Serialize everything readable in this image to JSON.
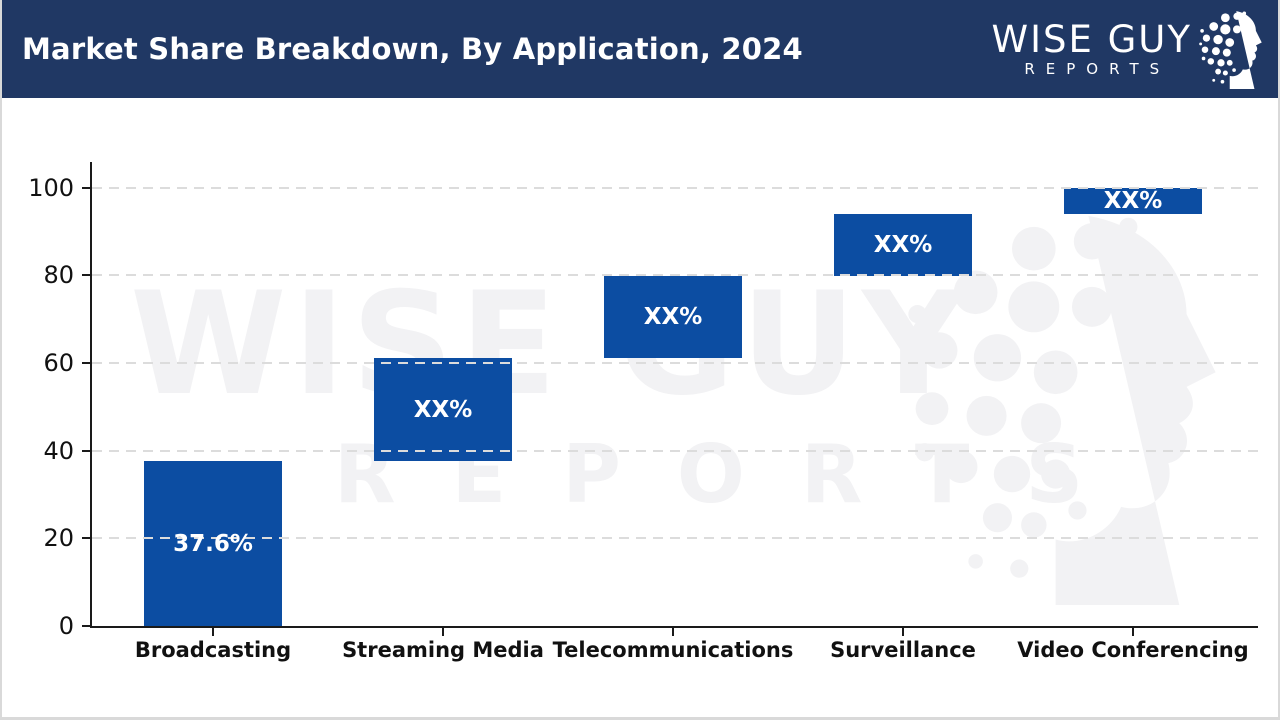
{
  "header": {
    "title": "Market Share Breakdown, By Application, 2024",
    "brand": {
      "line1": "WISE GUY",
      "line2": "REPORTS"
    }
  },
  "watermark": {
    "line1": "WISE GUY",
    "line2": "REPORTS"
  },
  "colors": {
    "header_bg": "#203864",
    "bar": "#0C4DA2",
    "grid": "#DCDCDC",
    "axis": "#1a1a1a",
    "watermark": "#F2F2F4",
    "frame_border": "#D9D9D9",
    "bar_label_text": "#FFFFFF",
    "title_text": "#FFFFFF"
  },
  "chart_data": {
    "type": "bar",
    "subtype": "waterfall",
    "title": "Market Share Breakdown, By Application, 2024",
    "categories": [
      "Broadcasting",
      "Streaming Media",
      "Telecommunications",
      "Surveillance",
      "Video Conferencing"
    ],
    "segments": [
      {
        "category": "Broadcasting",
        "start": 0,
        "end": 37.6,
        "value": 37.6,
        "label": "37.6%"
      },
      {
        "category": "Streaming Media",
        "start": 37.6,
        "end": 61.1,
        "value": 23.5,
        "label": "XX%"
      },
      {
        "category": "Telecommunications",
        "start": 61.1,
        "end": 79.9,
        "value": 18.8,
        "label": "XX%"
      },
      {
        "category": "Surveillance",
        "start": 79.9,
        "end": 94.0,
        "value": 14.1,
        "label": "XX%"
      },
      {
        "category": "Video Conferencing",
        "start": 94.0,
        "end": 100.0,
        "value": 6.0,
        "label": "XX%"
      }
    ],
    "yticks": [
      0,
      20,
      40,
      60,
      80,
      100
    ],
    "ylim": [
      0,
      105.8
    ],
    "xlabel": "",
    "ylabel": "",
    "grid": "horizontal-dashed",
    "legend_position": "none"
  }
}
